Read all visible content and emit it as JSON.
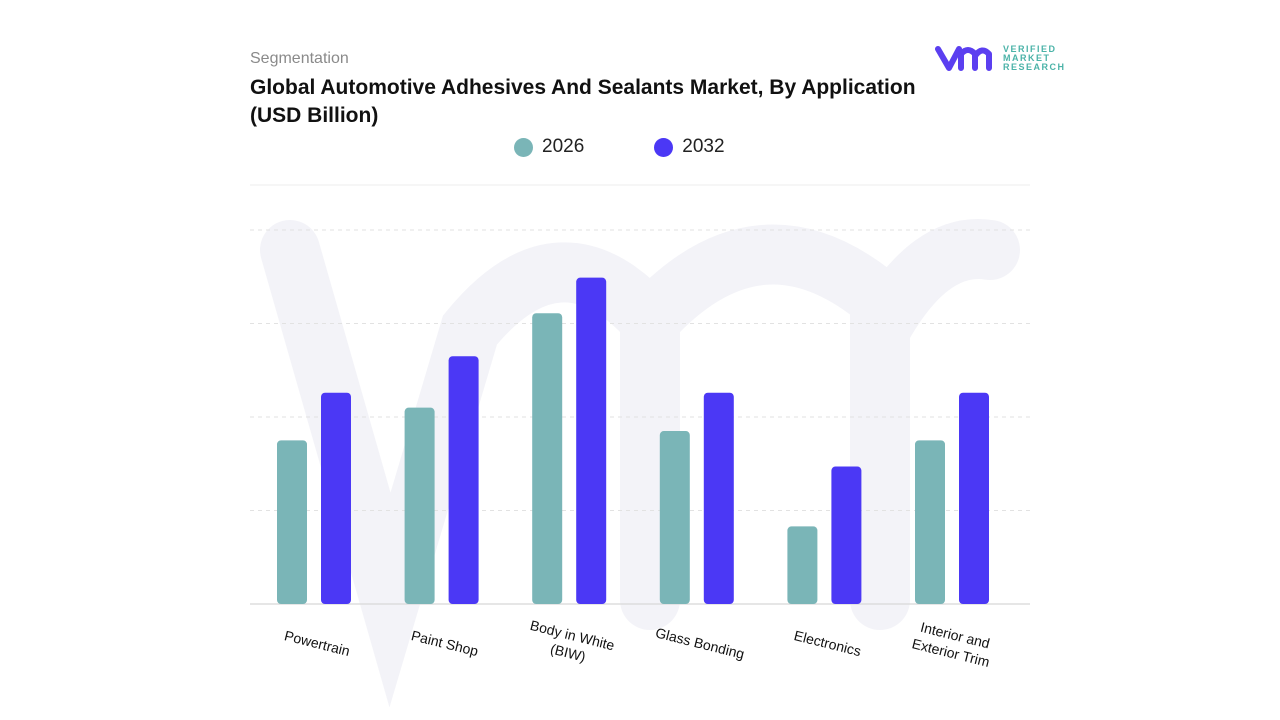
{
  "header": {
    "segment_label": "Segmentation",
    "title": "Global Automotive Adhesives And Sealants Market, By Application (USD Billion)"
  },
  "logo": {
    "text_lines": [
      "VERIFIED",
      "MARKET",
      "RESEARCH"
    ],
    "colors": {
      "mark": "#5b3ff0",
      "text": "#4bb3a8"
    }
  },
  "chart_data": {
    "type": "bar",
    "title": "Global Automotive Adhesives And Sealants Market, By Application (USD Billion)",
    "categories": [
      [
        "Powertrain"
      ],
      [
        "Paint Shop"
      ],
      [
        "Body in White",
        "(BIW)"
      ],
      [
        "Glass Bonding"
      ],
      [
        "Electronics"
      ],
      [
        "Interior and",
        "Exterior Trim"
      ]
    ],
    "series": [
      {
        "name": "2026",
        "color": "#7ab5b7",
        "values": [
          1.75,
          2.1,
          3.11,
          1.85,
          0.83,
          1.75
        ]
      },
      {
        "name": "2032",
        "color": "#4b38f5",
        "values": [
          2.26,
          2.65,
          3.49,
          2.26,
          1.47,
          2.26
        ]
      }
    ],
    "ylim": [
      0,
      4
    ],
    "grid": true,
    "legend": "top-center",
    "xlabel": "",
    "ylabel": ""
  }
}
